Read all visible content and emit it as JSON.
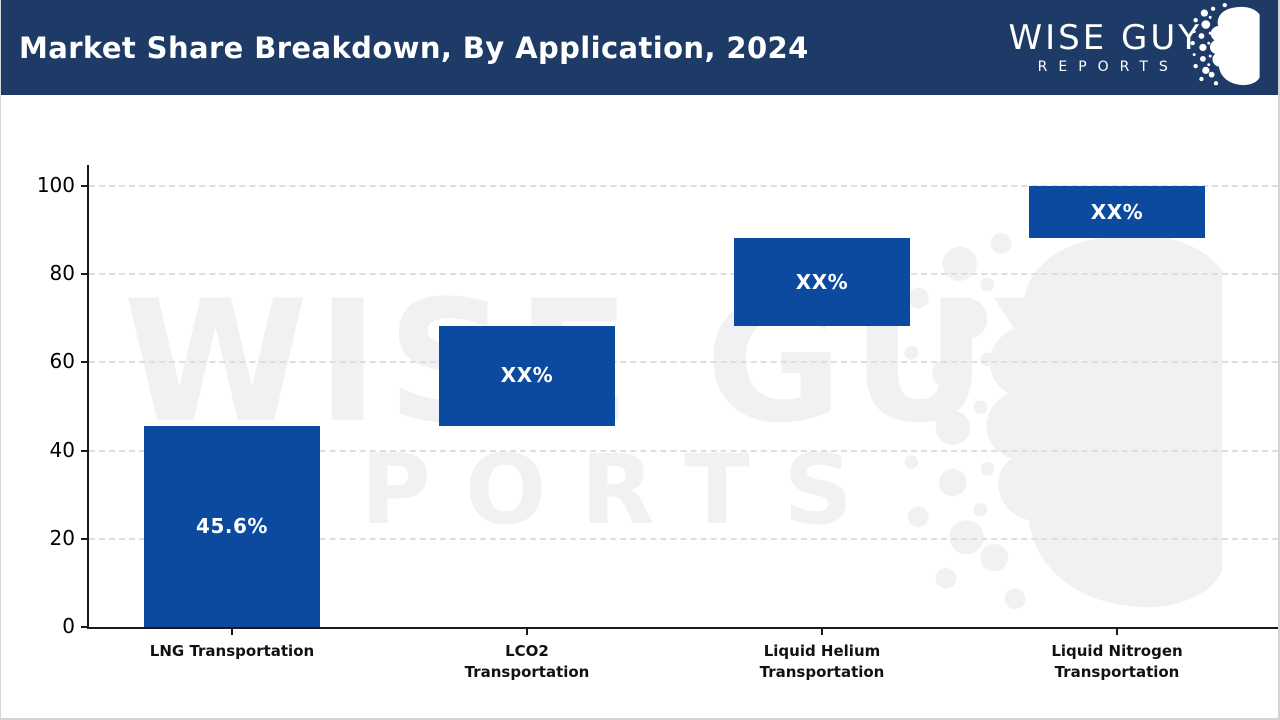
{
  "header": {
    "title": "Market Share Breakdown, By Application, 2024",
    "logo": {
      "wordmark": "WISE GUY",
      "subtitle": "REPORTS"
    }
  },
  "watermark": {
    "line1": "WISE GUY",
    "line2": "REPORTS"
  },
  "chart_data": {
    "type": "bar",
    "subtype": "waterfall",
    "title": "Market Share Breakdown, By Application, 2024",
    "categories": [
      "LNG Transportation",
      "LCO2 Transportation",
      "Liquid Helium Transportation",
      "Liquid Nitrogen Transportation"
    ],
    "category_lines": [
      [
        "LNG Transportation"
      ],
      [
        "LCO2",
        "Transportation"
      ],
      [
        "Liquid Helium",
        "Transportation"
      ],
      [
        "Liquid Nitrogen",
        "Transportation"
      ]
    ],
    "segments": [
      {
        "category": "LNG Transportation",
        "start": 0,
        "end": 45.6,
        "label": "45.6%"
      },
      {
        "category": "LCO2 Transportation",
        "start": 45.6,
        "end": 68.2,
        "label": "XX%"
      },
      {
        "category": "Liquid Helium Transportation",
        "start": 68.2,
        "end": 88.2,
        "label": "XX%"
      },
      {
        "category": "Liquid Nitrogen Transportation",
        "start": 88.2,
        "end": 100,
        "label": "XX%"
      }
    ],
    "yticks": [
      0,
      20,
      40,
      60,
      80,
      100
    ],
    "ylim": [
      0,
      105
    ],
    "xlabel": "",
    "ylabel": "",
    "legend": "none",
    "grid": "horizontal-dashed"
  },
  "colors": {
    "header_bg": "#1e3a66",
    "bar": "#0b4a9f",
    "grid": "#dedee0",
    "axis": "#1a1a1a",
    "watermark": "#f1f1f4",
    "label_text": "#ffffff"
  }
}
